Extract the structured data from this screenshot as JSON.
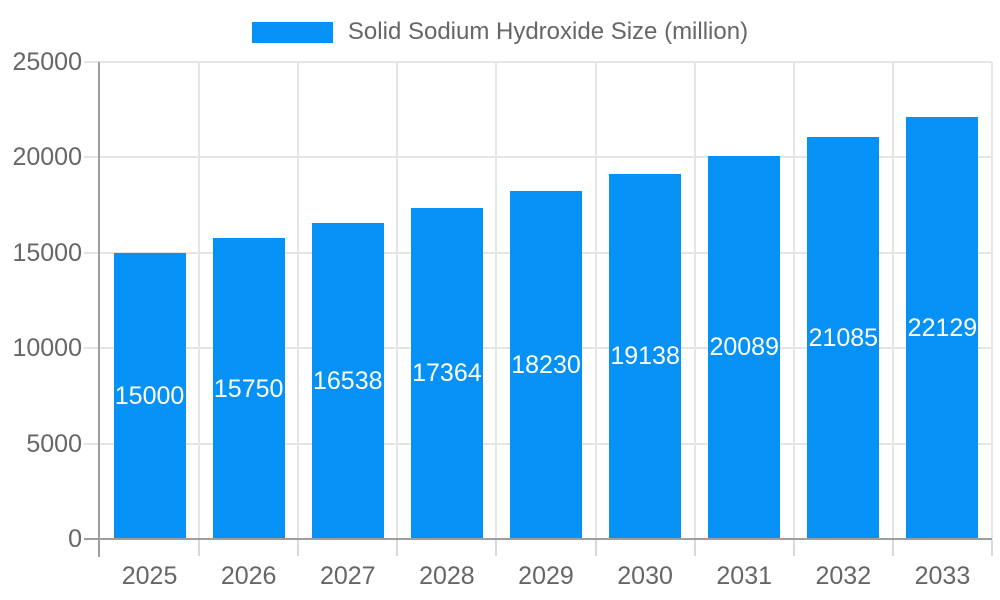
{
  "chart_data": {
    "type": "bar",
    "title": "Solid Sodium Hydroxide Size (million)",
    "legend": [
      "Solid Sodium Hydroxide Size (million)"
    ],
    "legend_position": "top-center",
    "categories": [
      "2025",
      "2026",
      "2027",
      "2028",
      "2029",
      "2030",
      "2031",
      "2032",
      "2033"
    ],
    "values": [
      15000,
      15750,
      16538,
      17364,
      18230,
      19138,
      20089,
      21085,
      22129
    ],
    "xlabel": "",
    "ylabel": "",
    "ylim": [
      0,
      25000
    ],
    "yticks": [
      0,
      5000,
      10000,
      15000,
      20000,
      25000
    ],
    "grid": true,
    "value_labels_inside_bars": true,
    "colors": {
      "bar": "#0691F7",
      "value_label": "#FFFFFF",
      "gridline": "#E5E5E5",
      "axis": "#9E9E9E",
      "text": "#666666",
      "background": "#FFFFFF"
    }
  }
}
